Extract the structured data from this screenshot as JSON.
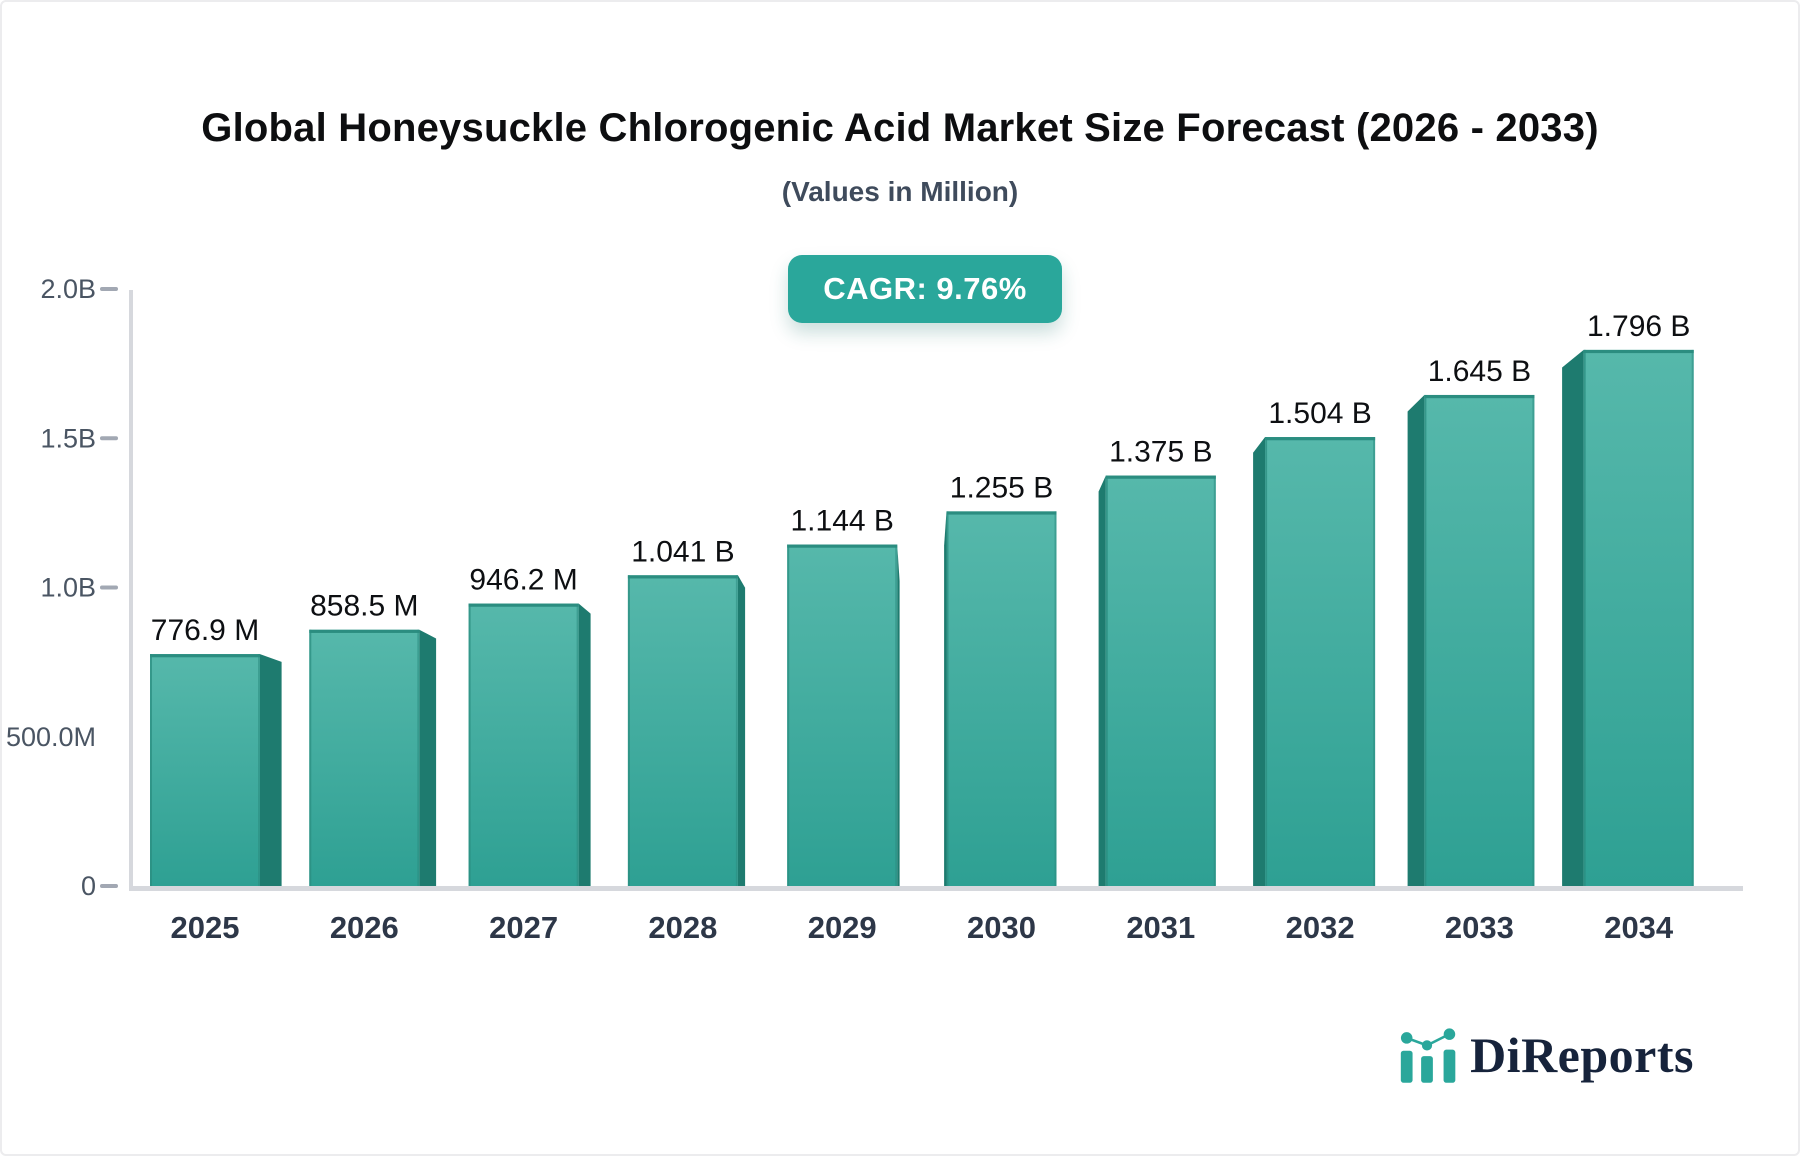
{
  "header": {
    "title": "Global Honeysuckle Chlorogenic Acid Market Size Forecast (2026 - 2033)",
    "subtitle": "(Values in Million)",
    "cagr_label": "CAGR: 9.76%"
  },
  "brand": {
    "name": "DiReports",
    "icon": "bar-chart-logo-icon"
  },
  "colors": {
    "accent": "#2AA79B",
    "bar_top": "#56B8AB",
    "bar_bottom": "#2EA093",
    "bar_side": "#1E7B6F",
    "bar_edge": "#2B8D80",
    "axis_line": "#D6D8DD",
    "tick_dash": "#A2A8B3",
    "tick_text": "#4A5563",
    "year_text": "#2D3748",
    "value_text": "#0D0F12",
    "logo_text": "#16233B"
  },
  "chart_data": {
    "type": "bar",
    "title": "Global Honeysuckle Chlorogenic Acid Market Size Forecast (2026 - 2033)",
    "subtitle": "(Values in Million)",
    "cagr": "9.76%",
    "xlabel": "",
    "ylabel": "",
    "categories": [
      "2025",
      "2026",
      "2027",
      "2028",
      "2029",
      "2030",
      "2031",
      "2032",
      "2033",
      "2034"
    ],
    "values_millions": [
      776.9,
      858.5,
      946.2,
      1041,
      1144,
      1255,
      1375,
      1504,
      1645,
      1796
    ],
    "bar_labels": [
      "776.9 M",
      "858.5 M",
      "946.2 M",
      "1.041 B",
      "1.144 B",
      "1.255 B",
      "1.375 B",
      "1.504 B",
      "1.645 B",
      "1.796 B"
    ],
    "ylim": [
      0,
      2000
    ],
    "y_ticks": [
      {
        "label": "2.0B",
        "value": 2000,
        "dash": true
      },
      {
        "label": "1.5B",
        "value": 1500,
        "dash": true
      },
      {
        "label": "1.0B",
        "value": 1000,
        "dash": true
      },
      {
        "label": "500.0M",
        "value": 500,
        "dash": false
      },
      {
        "label": "0",
        "value": 0,
        "dash": true
      }
    ],
    "grid": false,
    "legend_position": "none"
  }
}
